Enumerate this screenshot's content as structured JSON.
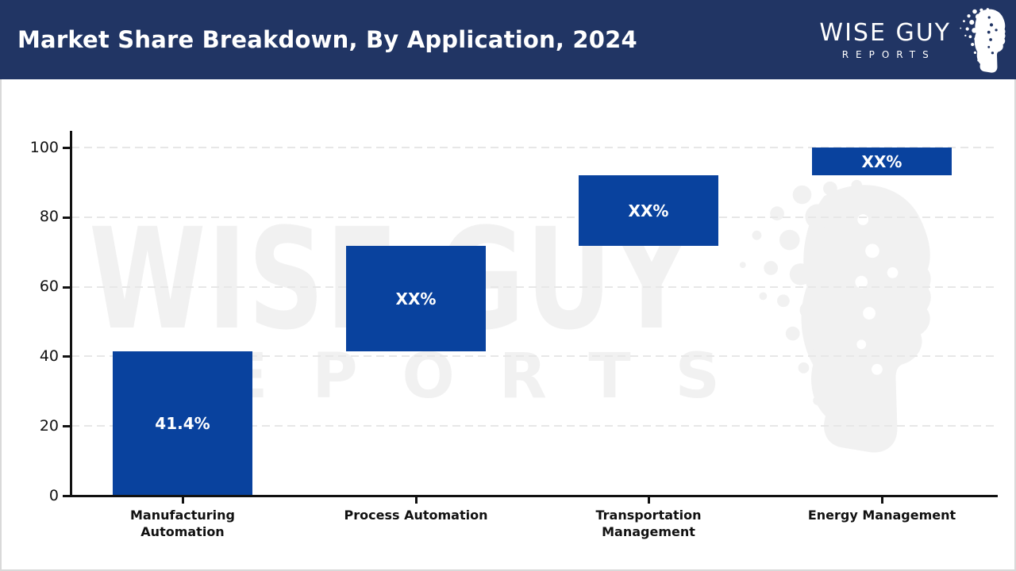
{
  "header": {
    "title": "Market Share Breakdown, By Application, 2024",
    "brand": {
      "name": "WISE GUY",
      "reports": "REPORTS"
    }
  },
  "watermark": {
    "line1": "WISE GUY",
    "line2": "REPORTS"
  },
  "colors": {
    "header_bg": "#213564",
    "bar": "#09429e",
    "bar_label": "#ffffff",
    "axis": "#111111",
    "grid": "#e7e7e7",
    "watermark": "#f1f1f1",
    "text": "#111111",
    "frame_border": "#d9d9d9"
  },
  "chart_data": {
    "type": "bar",
    "subtype": "waterfall",
    "title": "Market Share Breakdown, By Application, 2024",
    "categories": [
      "Manufacturing\nAutomation",
      "Process Automation",
      "Transportation\nManagement",
      "Energy Management"
    ],
    "segments": [
      {
        "category": "Manufacturing Automation",
        "start": 0,
        "end": 41.4,
        "label": "41.4%"
      },
      {
        "category": "Process Automation",
        "start": 41.4,
        "end": 71.7,
        "label": "XX%"
      },
      {
        "category": "Transportation Management",
        "start": 71.7,
        "end": 92.0,
        "label": "XX%"
      },
      {
        "category": "Energy Management",
        "start": 92.0,
        "end": 99.9,
        "label": "XX%"
      }
    ],
    "yticks": [
      0,
      20,
      40,
      60,
      80,
      100
    ],
    "ylim": [
      0,
      105
    ],
    "value_suffix": "%",
    "grid": "horizontal-dashed",
    "legend": "none"
  }
}
